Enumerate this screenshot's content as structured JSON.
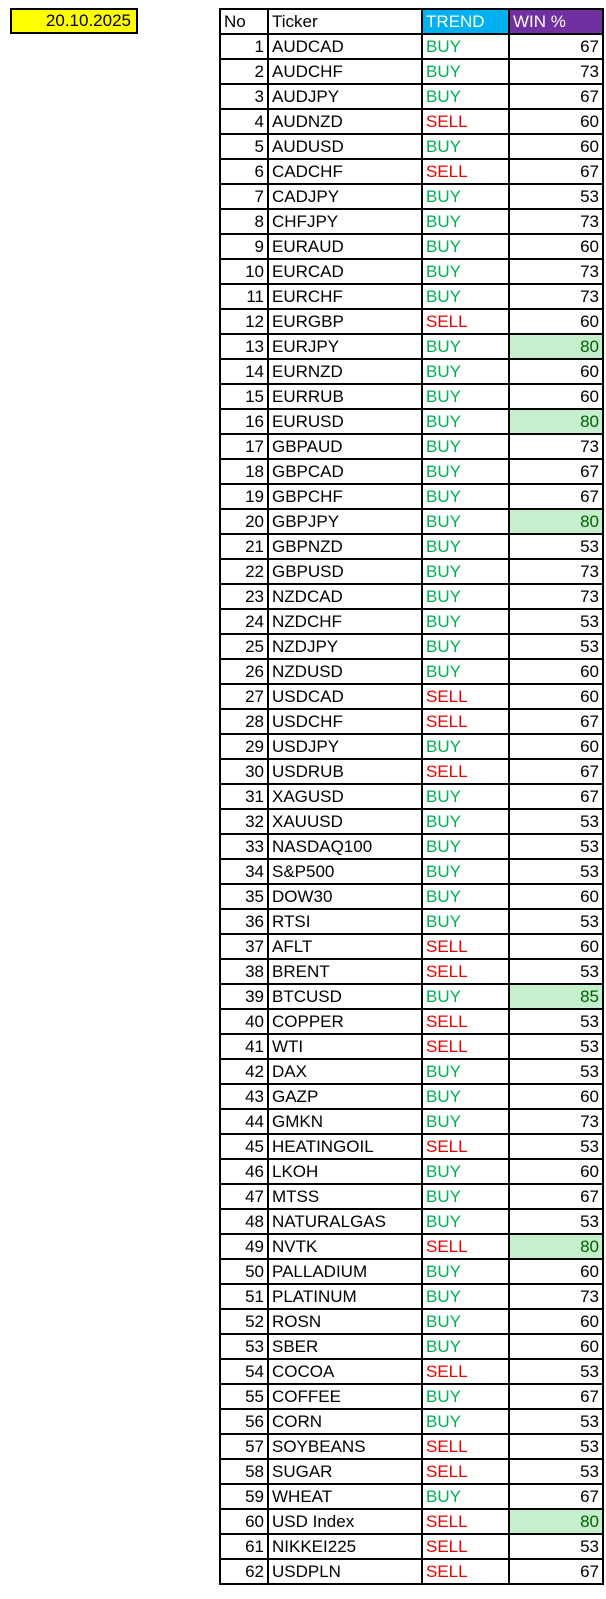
{
  "date_badge": {
    "text": "20.10.2025"
  },
  "colors": {
    "page_bg": "#ffffff",
    "text": "#000000",
    "border": "#000000",
    "date_bg": "#ffff00",
    "trend_header_bg": "#00b0f0",
    "win_header_bg": "#7030a0",
    "header_text": "#ffffff",
    "buy": "#00b050",
    "sell": "#e60000",
    "highlight_bg": "#c6efce",
    "highlight_text": "#006100"
  },
  "table": {
    "headers": {
      "no": "No",
      "ticker": "Ticker",
      "trend": "TREND",
      "win": "WIN %"
    },
    "trend_values": {
      "buy": "BUY",
      "sell": "SELL"
    },
    "rows": [
      {
        "no": 1,
        "ticker": "AUDCAD",
        "trend": "BUY",
        "win": 67,
        "highlight": false
      },
      {
        "no": 2,
        "ticker": "AUDCHF",
        "trend": "BUY",
        "win": 73,
        "highlight": false
      },
      {
        "no": 3,
        "ticker": "AUDJPY",
        "trend": "BUY",
        "win": 67,
        "highlight": false
      },
      {
        "no": 4,
        "ticker": "AUDNZD",
        "trend": "SELL",
        "win": 60,
        "highlight": false
      },
      {
        "no": 5,
        "ticker": "AUDUSD",
        "trend": "BUY",
        "win": 60,
        "highlight": false
      },
      {
        "no": 6,
        "ticker": "CADCHF",
        "trend": "SELL",
        "win": 67,
        "highlight": false
      },
      {
        "no": 7,
        "ticker": "CADJPY",
        "trend": "BUY",
        "win": 53,
        "highlight": false
      },
      {
        "no": 8,
        "ticker": "CHFJPY",
        "trend": "BUY",
        "win": 73,
        "highlight": false
      },
      {
        "no": 9,
        "ticker": "EURAUD",
        "trend": "BUY",
        "win": 60,
        "highlight": false
      },
      {
        "no": 10,
        "ticker": "EURCAD",
        "trend": "BUY",
        "win": 73,
        "highlight": false
      },
      {
        "no": 11,
        "ticker": "EURCHF",
        "trend": "BUY",
        "win": 73,
        "highlight": false
      },
      {
        "no": 12,
        "ticker": "EURGBP",
        "trend": "SELL",
        "win": 60,
        "highlight": false
      },
      {
        "no": 13,
        "ticker": "EURJPY",
        "trend": "BUY",
        "win": 80,
        "highlight": true
      },
      {
        "no": 14,
        "ticker": "EURNZD",
        "trend": "BUY",
        "win": 60,
        "highlight": false
      },
      {
        "no": 15,
        "ticker": "EURRUB",
        "trend": "BUY",
        "win": 60,
        "highlight": false
      },
      {
        "no": 16,
        "ticker": "EURUSD",
        "trend": "BUY",
        "win": 80,
        "highlight": true
      },
      {
        "no": 17,
        "ticker": "GBPAUD",
        "trend": "BUY",
        "win": 73,
        "highlight": false
      },
      {
        "no": 18,
        "ticker": "GBPCAD",
        "trend": "BUY",
        "win": 67,
        "highlight": false
      },
      {
        "no": 19,
        "ticker": "GBPCHF",
        "trend": "BUY",
        "win": 67,
        "highlight": false
      },
      {
        "no": 20,
        "ticker": "GBPJPY",
        "trend": "BUY",
        "win": 80,
        "highlight": true
      },
      {
        "no": 21,
        "ticker": "GBPNZD",
        "trend": "BUY",
        "win": 53,
        "highlight": false
      },
      {
        "no": 22,
        "ticker": "GBPUSD",
        "trend": "BUY",
        "win": 73,
        "highlight": false
      },
      {
        "no": 23,
        "ticker": "NZDCAD",
        "trend": "BUY",
        "win": 73,
        "highlight": false
      },
      {
        "no": 24,
        "ticker": "NZDCHF",
        "trend": "BUY",
        "win": 53,
        "highlight": false
      },
      {
        "no": 25,
        "ticker": "NZDJPY",
        "trend": "BUY",
        "win": 53,
        "highlight": false
      },
      {
        "no": 26,
        "ticker": "NZDUSD",
        "trend": "BUY",
        "win": 60,
        "highlight": false
      },
      {
        "no": 27,
        "ticker": "USDCAD",
        "trend": "SELL",
        "win": 60,
        "highlight": false
      },
      {
        "no": 28,
        "ticker": "USDCHF",
        "trend": "SELL",
        "win": 67,
        "highlight": false
      },
      {
        "no": 29,
        "ticker": "USDJPY",
        "trend": "BUY",
        "win": 60,
        "highlight": false
      },
      {
        "no": 30,
        "ticker": "USDRUB",
        "trend": "SELL",
        "win": 67,
        "highlight": false
      },
      {
        "no": 31,
        "ticker": "XAGUSD",
        "trend": "BUY",
        "win": 67,
        "highlight": false
      },
      {
        "no": 32,
        "ticker": "XAUUSD",
        "trend": "BUY",
        "win": 53,
        "highlight": false
      },
      {
        "no": 33,
        "ticker": "NASDAQ100",
        "trend": "BUY",
        "win": 53,
        "highlight": false
      },
      {
        "no": 34,
        "ticker": "S&P500",
        "trend": "BUY",
        "win": 53,
        "highlight": false
      },
      {
        "no": 35,
        "ticker": "DOW30",
        "trend": "BUY",
        "win": 60,
        "highlight": false
      },
      {
        "no": 36,
        "ticker": "RTSI",
        "trend": "BUY",
        "win": 53,
        "highlight": false
      },
      {
        "no": 37,
        "ticker": "AFLT",
        "trend": "SELL",
        "win": 60,
        "highlight": false
      },
      {
        "no": 38,
        "ticker": "BRENT",
        "trend": "SELL",
        "win": 53,
        "highlight": false
      },
      {
        "no": 39,
        "ticker": "BTCUSD",
        "trend": "BUY",
        "win": 85,
        "highlight": true
      },
      {
        "no": 40,
        "ticker": "COPPER",
        "trend": "SELL",
        "win": 53,
        "highlight": false
      },
      {
        "no": 41,
        "ticker": "WTI",
        "trend": "SELL",
        "win": 53,
        "highlight": false
      },
      {
        "no": 42,
        "ticker": "DAX",
        "trend": "BUY",
        "win": 53,
        "highlight": false
      },
      {
        "no": 43,
        "ticker": "GAZP",
        "trend": "BUY",
        "win": 60,
        "highlight": false
      },
      {
        "no": 44,
        "ticker": "GMKN",
        "trend": "BUY",
        "win": 73,
        "highlight": false
      },
      {
        "no": 45,
        "ticker": "HEATINGOIL",
        "trend": "SELL",
        "win": 53,
        "highlight": false
      },
      {
        "no": 46,
        "ticker": "LKOH",
        "trend": "BUY",
        "win": 60,
        "highlight": false
      },
      {
        "no": 47,
        "ticker": "MTSS",
        "trend": "BUY",
        "win": 67,
        "highlight": false
      },
      {
        "no": 48,
        "ticker": "NATURALGAS",
        "trend": "BUY",
        "win": 53,
        "highlight": false
      },
      {
        "no": 49,
        "ticker": "NVTK",
        "trend": "SELL",
        "win": 80,
        "highlight": true
      },
      {
        "no": 50,
        "ticker": "PALLADIUM",
        "trend": "BUY",
        "win": 60,
        "highlight": false
      },
      {
        "no": 51,
        "ticker": "PLATINUM",
        "trend": "BUY",
        "win": 73,
        "highlight": false
      },
      {
        "no": 52,
        "ticker": "ROSN",
        "trend": "BUY",
        "win": 60,
        "highlight": false
      },
      {
        "no": 53,
        "ticker": "SBER",
        "trend": "BUY",
        "win": 60,
        "highlight": false
      },
      {
        "no": 54,
        "ticker": "COCOA",
        "trend": "SELL",
        "win": 53,
        "highlight": false
      },
      {
        "no": 55,
        "ticker": "COFFEE",
        "trend": "BUY",
        "win": 67,
        "highlight": false
      },
      {
        "no": 56,
        "ticker": "CORN",
        "trend": "BUY",
        "win": 53,
        "highlight": false
      },
      {
        "no": 57,
        "ticker": "SOYBEANS",
        "trend": "SELL",
        "win": 53,
        "highlight": false
      },
      {
        "no": 58,
        "ticker": "SUGAR",
        "trend": "SELL",
        "win": 53,
        "highlight": false
      },
      {
        "no": 59,
        "ticker": "WHEAT",
        "trend": "BUY",
        "win": 67,
        "highlight": false
      },
      {
        "no": 60,
        "ticker": "USD Index",
        "trend": "SELL",
        "win": 80,
        "highlight": true
      },
      {
        "no": 61,
        "ticker": "NIKKEI225",
        "trend": "SELL",
        "win": 53,
        "highlight": false
      },
      {
        "no": 62,
        "ticker": "USDPLN",
        "trend": "SELL",
        "win": 67,
        "highlight": false
      }
    ]
  }
}
